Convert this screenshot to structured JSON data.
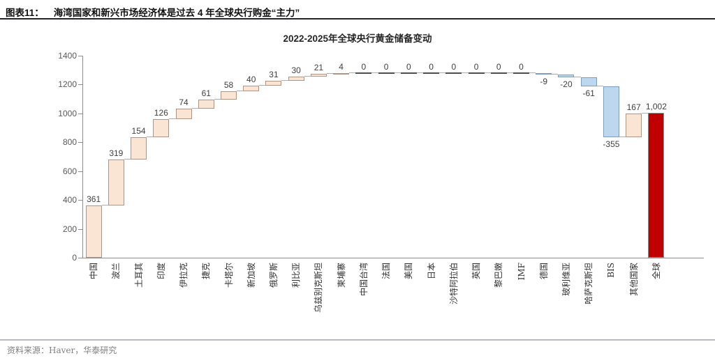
{
  "header": {
    "tag": "图表11：",
    "title": "海湾国家和新兴市场经济体是过去 4 年全球央行购金“主力”"
  },
  "footer": {
    "source": "资料来源：Haver，华泰研究"
  },
  "chart_data": {
    "type": "bar",
    "subtype": "waterfall",
    "title": "2022-2025年全球央行黄金储备变动",
    "categories": [
      "中国",
      "波兰",
      "土耳其",
      "印度",
      "伊拉克",
      "捷克",
      "卡塔尔",
      "新加坡",
      "俄罗斯",
      "利比亚",
      "乌兹别克斯坦",
      "柬埔寨",
      "中国台湾",
      "法国",
      "美国",
      "日本",
      "沙特阿拉伯",
      "英国",
      "黎巴嫩",
      "IMF",
      "德国",
      "玻利维亚",
      "哈萨克斯坦",
      "BIS",
      "其他国家",
      "全球"
    ],
    "values": [
      361,
      319,
      154,
      126,
      74,
      61,
      58,
      40,
      31,
      30,
      21,
      4,
      0,
      0,
      0,
      0,
      0,
      0,
      0,
      0,
      -9,
      -20,
      -61,
      -355,
      167,
      1002
    ],
    "labels": [
      "361",
      "319",
      "154",
      "126",
      "74",
      "61",
      "58",
      "40",
      "31",
      "30",
      "21",
      "4",
      "0",
      "0",
      "0",
      "0",
      "0",
      "0",
      "0",
      "0",
      "-9",
      "-20",
      "-61",
      "-355",
      "167",
      "1,002"
    ],
    "total_index": 25,
    "xlabel": "",
    "ylabel": "",
    "ylim": [
      0,
      1400
    ],
    "yticks": [
      0,
      200,
      400,
      600,
      800,
      1000,
      1200,
      1400
    ],
    "grid": false,
    "legend": false,
    "colors": {
      "increase_fill": "#fae4d3",
      "increase_border": "#ae9584",
      "decrease_fill": "#bdd7ee",
      "decrease_border": "#7e9dbb",
      "total_fill": "#c00000",
      "zero_dash": "#4d4d4d",
      "connector": "#aeaeae",
      "axis": "#8c8c8c"
    }
  }
}
